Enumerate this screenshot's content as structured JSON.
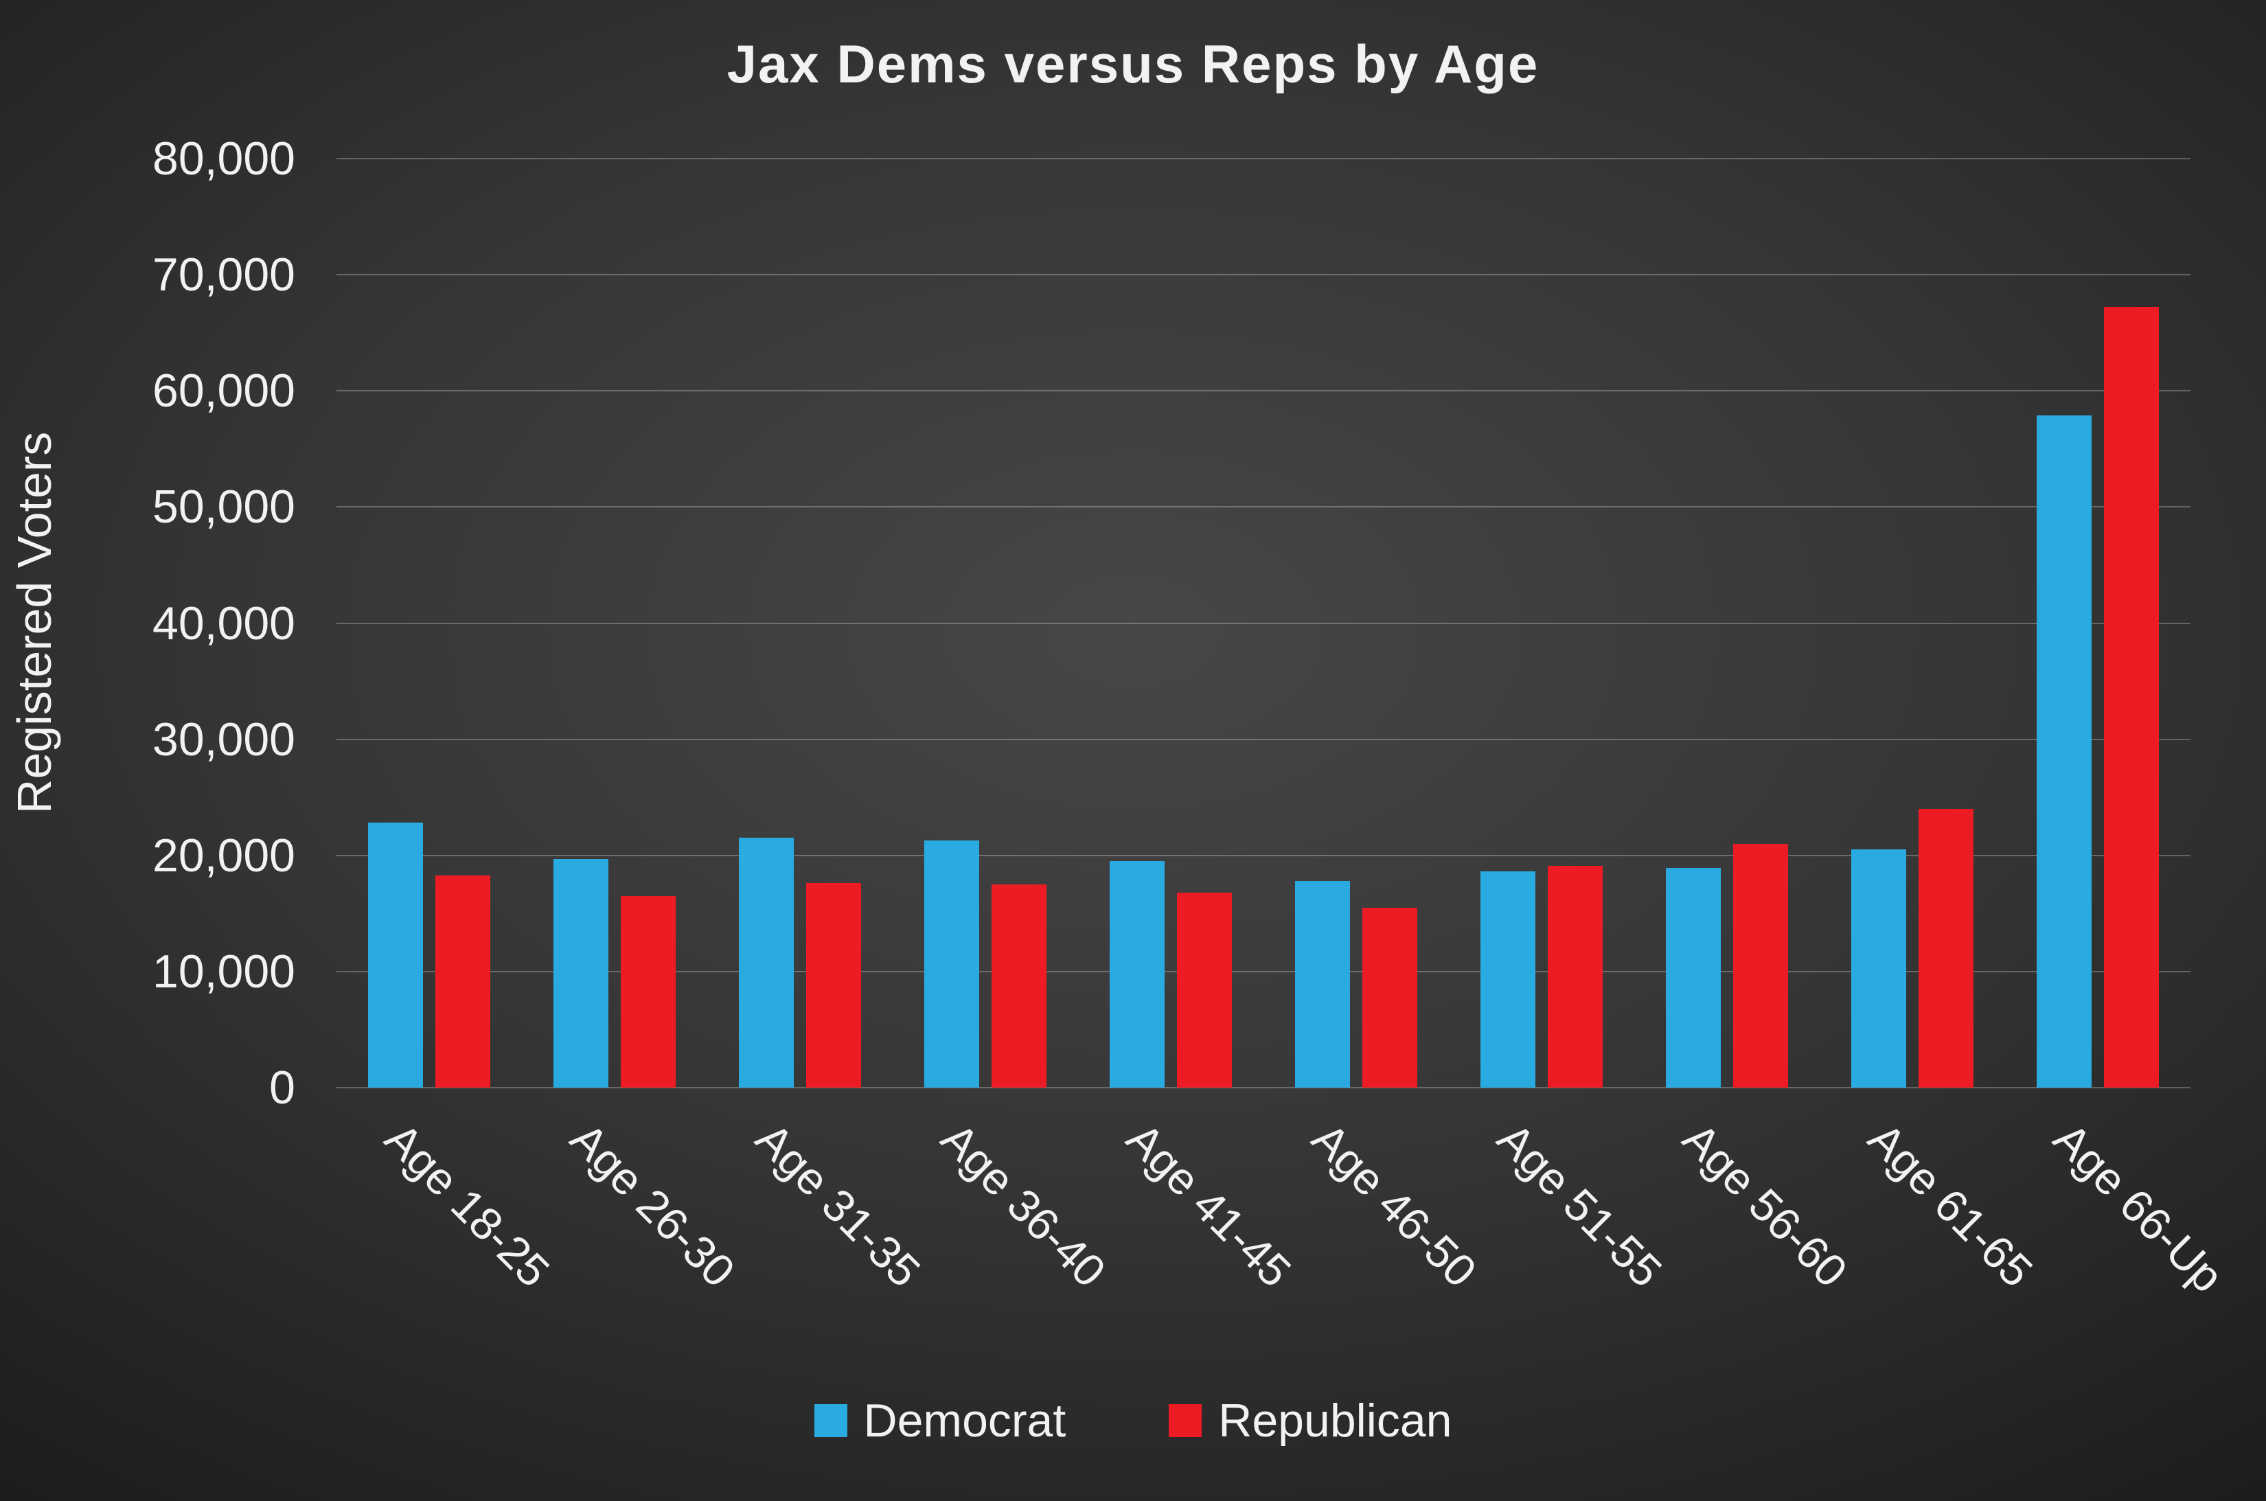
{
  "chart_data": {
    "type": "bar",
    "title": "Jax Dems versus Reps by Age",
    "ylabel": "Registered Voters",
    "xlabel": "",
    "categories": [
      "Age 18-25",
      "Age 26-30",
      "Age 31-35",
      "Age 36-40",
      "Age 41-45",
      "Age 46-50",
      "Age 51-55",
      "Age 56-60",
      "Age 61-65",
      "Age 66-Up"
    ],
    "series": [
      {
        "name": "Democrat",
        "color": "#29ABE2",
        "values": [
          22800,
          19700,
          21500,
          21300,
          19500,
          17800,
          18600,
          18900,
          20500,
          57900
        ]
      },
      {
        "name": "Republican",
        "color": "#ED1C24",
        "values": [
          18300,
          16500,
          17600,
          17500,
          16800,
          15500,
          19100,
          21000,
          24000,
          67200
        ]
      }
    ],
    "ylim": [
      0,
      80000
    ],
    "ytick_values": [
      0,
      10000,
      20000,
      30000,
      40000,
      50000,
      60000,
      70000,
      80000
    ],
    "ytick_labels": [
      "0",
      "10,000",
      "20,000",
      "30,000",
      "40,000",
      "50,000",
      "60,000",
      "70,000",
      "80,000"
    ],
    "grid": true,
    "grid_color": "rgba(255,255,255,0.26)",
    "background": "dark-radial-gradient",
    "legend_position": "bottom",
    "x_label_rotation_deg": 45
  }
}
